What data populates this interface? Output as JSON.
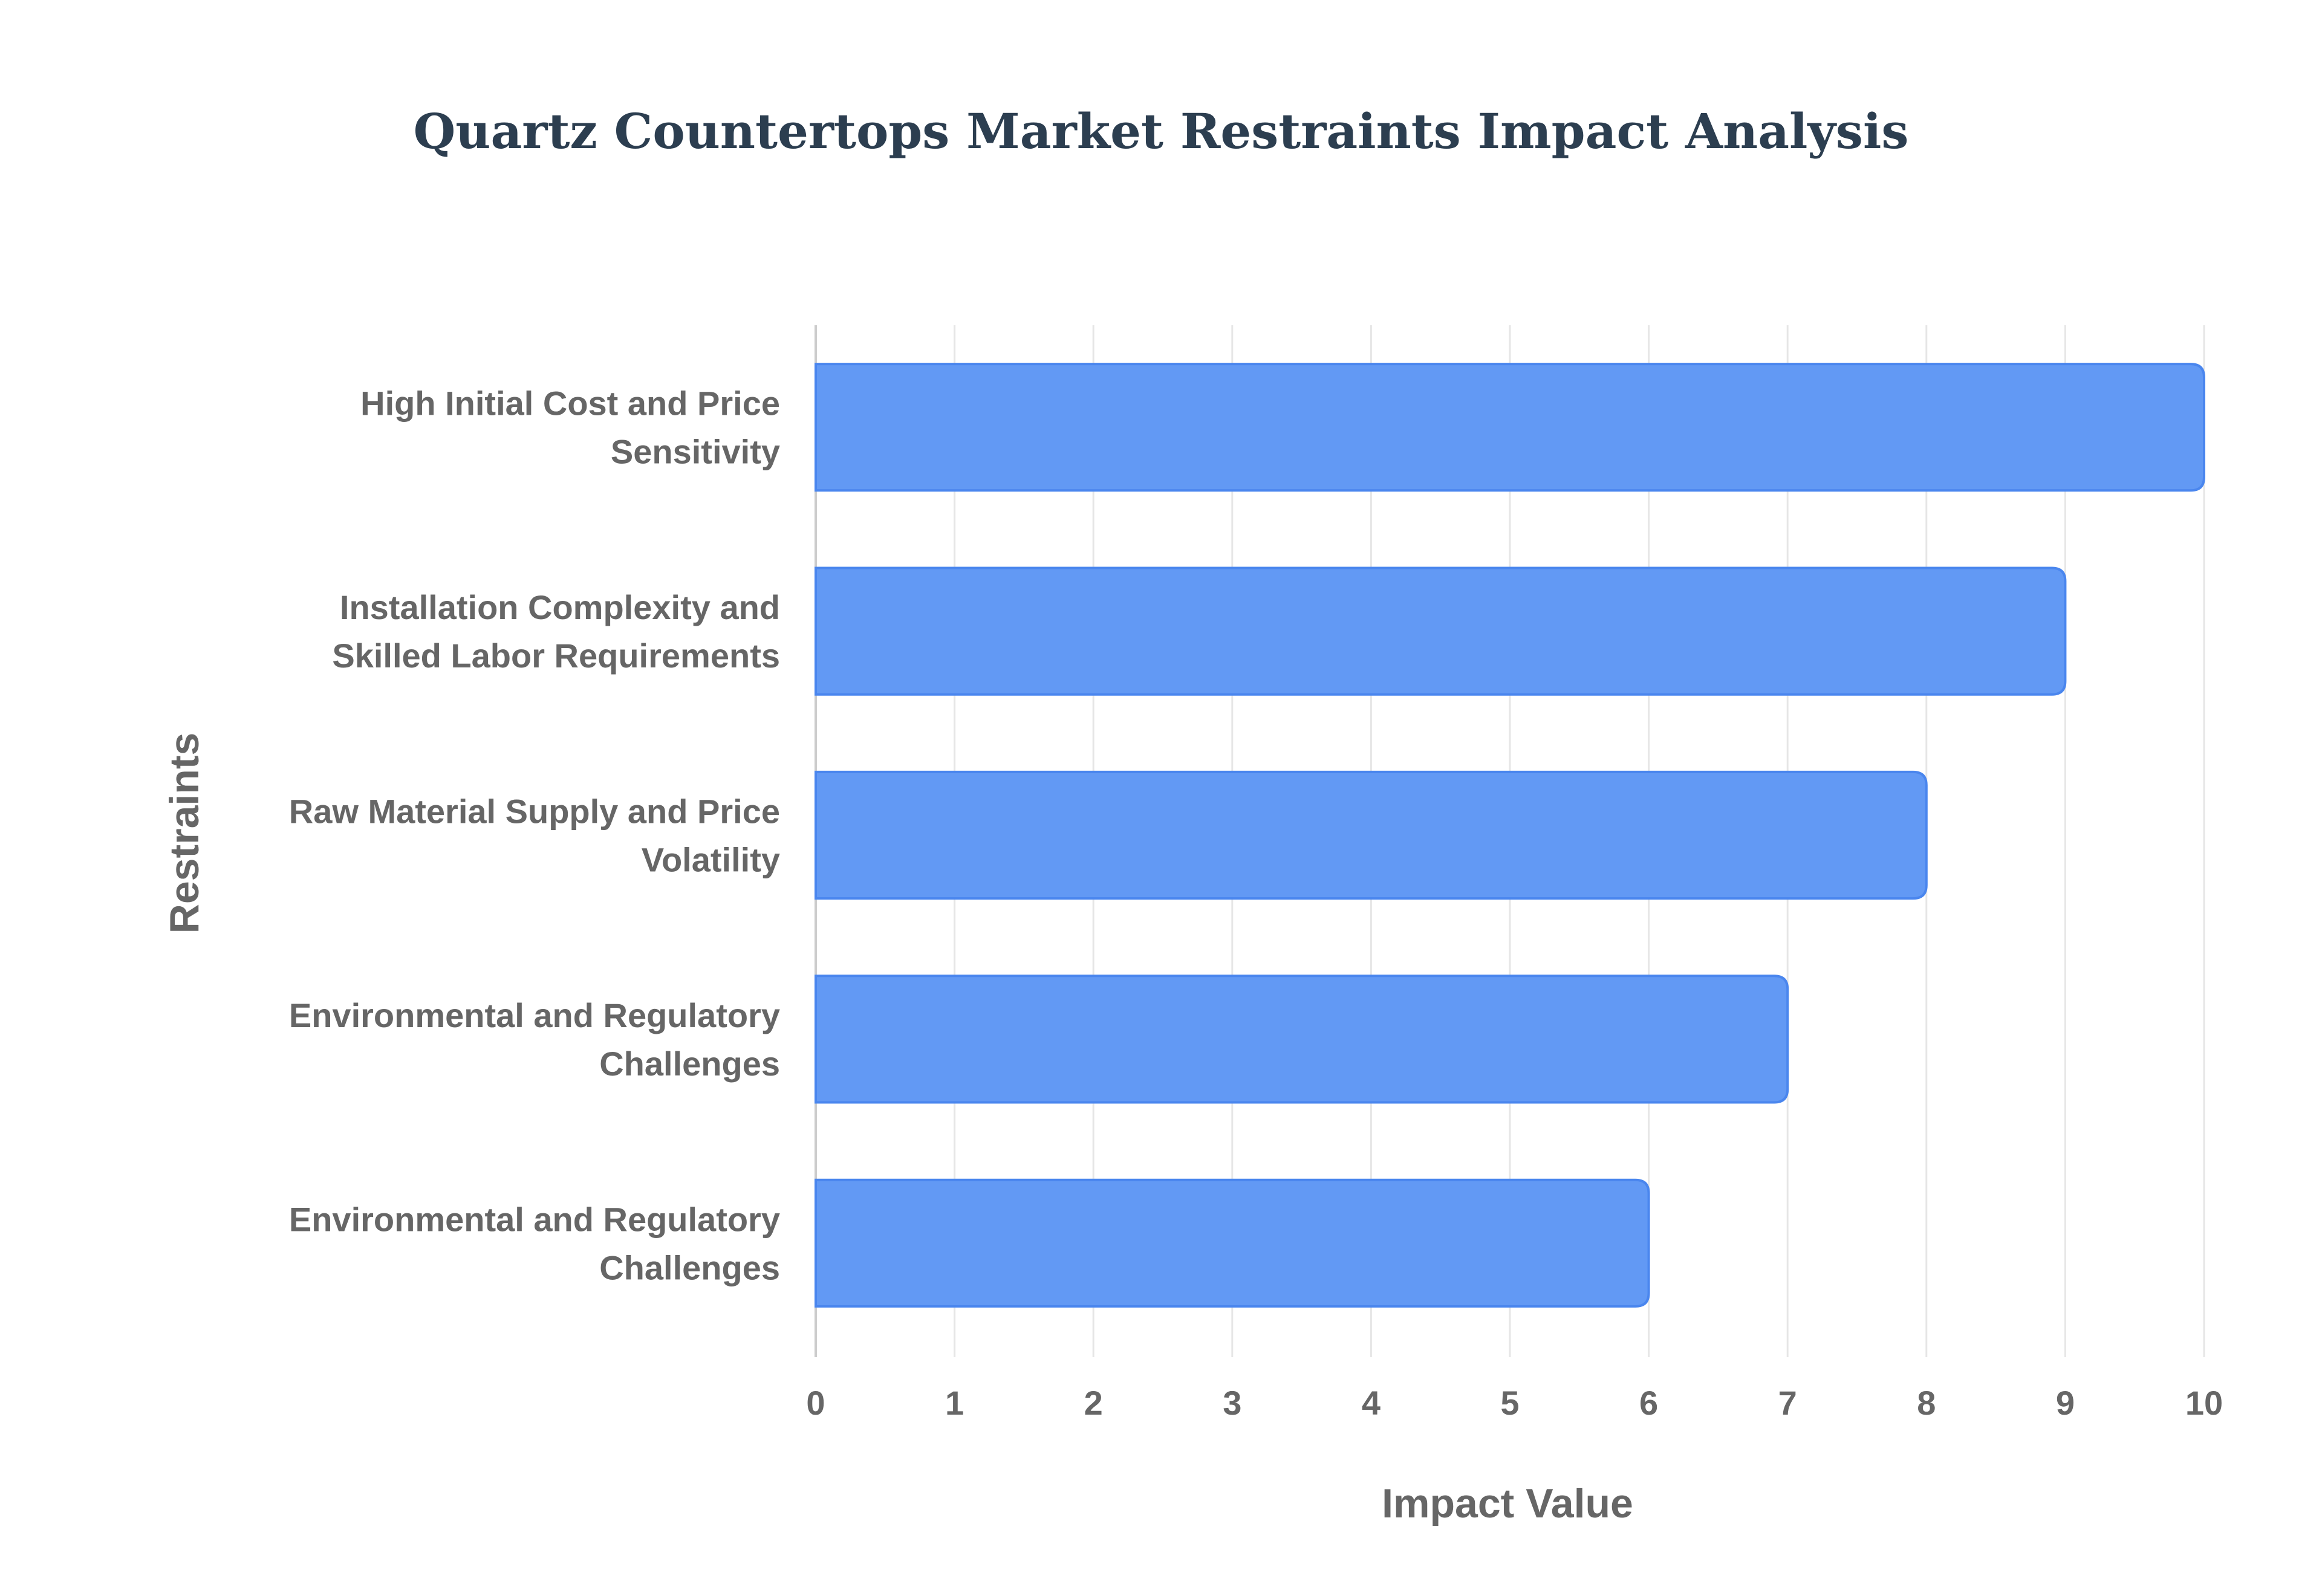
{
  "chart_data": {
    "type": "bar",
    "orientation": "horizontal",
    "title": "Quartz Countertops Market Restraints Impact Analysis",
    "xlabel": "Impact Value",
    "ylabel": "Restraints",
    "categories": [
      "High Initial Cost and Price Sensitivity",
      "Installation Complexity and Skilled Labor Requirements",
      "Raw Material Supply and Price Volatility",
      "Environmental and Regulatory Challenges",
      "Environmental and Regulatory Challenges"
    ],
    "category_lines": [
      [
        "High Initial Cost and Price",
        "Sensitivity"
      ],
      [
        "Installation Complexity and",
        "Skilled Labor Requirements"
      ],
      [
        "Raw Material Supply and Price",
        "Volatility"
      ],
      [
        "Environmental and Regulatory",
        "Challenges"
      ],
      [
        "Environmental and Regulatory",
        "Challenges"
      ]
    ],
    "values": [
      10,
      9,
      8,
      7,
      6
    ],
    "xlim": [
      0,
      10
    ],
    "xticks": [
      0,
      1,
      2,
      3,
      4,
      5,
      6,
      7,
      8,
      9,
      10
    ],
    "grid": true,
    "legend": "none",
    "bar_color": "#6299f4",
    "bar_border_color": "#4a86ee",
    "grid_color": "#e6e6e6",
    "label_color": "#666666",
    "title_color": "#2c3e50"
  }
}
